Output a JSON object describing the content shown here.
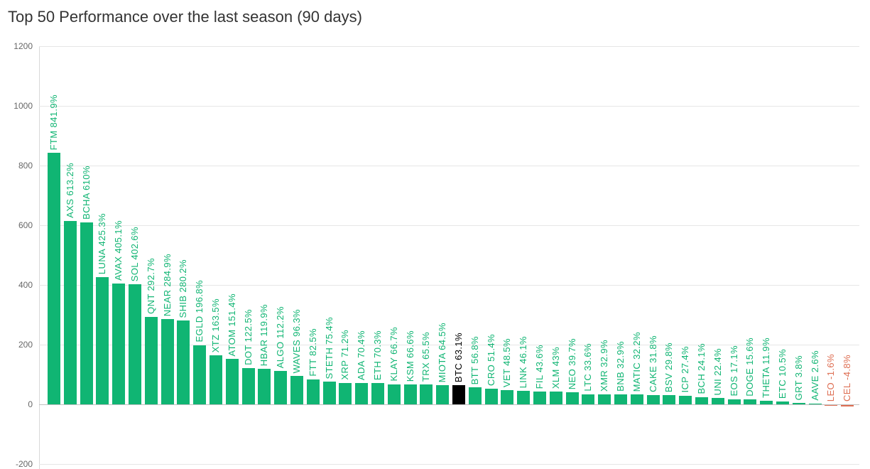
{
  "chart_data": {
    "type": "bar",
    "title": "Top 50 Performance over the last season (90 days)",
    "xlabel": "",
    "ylabel": "",
    "unit": "%",
    "ylim": [
      -200,
      1200
    ],
    "yticks": [
      1200,
      1000,
      800,
      600,
      400,
      200,
      0,
      -200
    ],
    "grid": true,
    "legend": false,
    "highlight_symbol": "BTC",
    "colors": {
      "positive": "#10b573",
      "negative": "#de6e52",
      "highlight": "#000000",
      "grid": "#e6e6e6",
      "zero_line": "#c0c0c0",
      "axis": "#d9d9d9",
      "title": "#333333",
      "tick": "#666666"
    },
    "series": [
      {
        "symbol": "FTM",
        "value": 841.9,
        "label": "FTM 841.9%"
      },
      {
        "symbol": "AXS",
        "value": 613.2,
        "label": "AXS 613.2%"
      },
      {
        "symbol": "BCHA",
        "value": 610,
        "label": "BCHA 610%"
      },
      {
        "symbol": "LUNA",
        "value": 425.3,
        "label": "LUNA 425.3%"
      },
      {
        "symbol": "AVAX",
        "value": 405.1,
        "label": "AVAX 405.1%"
      },
      {
        "symbol": "SOL",
        "value": 402.6,
        "label": "SOL 402.6%"
      },
      {
        "symbol": "QNT",
        "value": 292.7,
        "label": "QNT 292.7%"
      },
      {
        "symbol": "NEAR",
        "value": 284.9,
        "label": "NEAR 284.9%"
      },
      {
        "symbol": "SHIB",
        "value": 280.2,
        "label": "SHIB 280.2%"
      },
      {
        "symbol": "EGLD",
        "value": 196.8,
        "label": "EGLD 196.8%"
      },
      {
        "symbol": "XTZ",
        "value": 163.5,
        "label": "XTZ 163.5%"
      },
      {
        "symbol": "ATOM",
        "value": 151.4,
        "label": "ATOM 151.4%"
      },
      {
        "symbol": "DOT",
        "value": 122.5,
        "label": "DOT 122.5%"
      },
      {
        "symbol": "HBAR",
        "value": 119.9,
        "label": "HBAR 119.9%"
      },
      {
        "symbol": "ALGO",
        "value": 112.2,
        "label": "ALGO 112.2%"
      },
      {
        "symbol": "WAVES",
        "value": 96.3,
        "label": "WAVES 96.3%"
      },
      {
        "symbol": "FTT",
        "value": 82.5,
        "label": "FTT 82.5%"
      },
      {
        "symbol": "STETH",
        "value": 75.4,
        "label": "STETH 75.4%"
      },
      {
        "symbol": "XRP",
        "value": 71.2,
        "label": "XRP 71.2%"
      },
      {
        "symbol": "ADA",
        "value": 70.4,
        "label": "ADA 70.4%"
      },
      {
        "symbol": "ETH",
        "value": 70.3,
        "label": "ETH 70.3%"
      },
      {
        "symbol": "KLAY",
        "value": 66.7,
        "label": "KLAY 66.7%"
      },
      {
        "symbol": "KSM",
        "value": 66.6,
        "label": "KSM 66.6%"
      },
      {
        "symbol": "TRX",
        "value": 65.5,
        "label": "TRX 65.5%"
      },
      {
        "symbol": "MIOTA",
        "value": 64.5,
        "label": "MIOTA 64.5%"
      },
      {
        "symbol": "BTC",
        "value": 63.1,
        "label": "BTC 63.1%"
      },
      {
        "symbol": "BTT",
        "value": 56.8,
        "label": "BTT 56.8%"
      },
      {
        "symbol": "CRO",
        "value": 51.4,
        "label": "CRO 51.4%"
      },
      {
        "symbol": "VET",
        "value": 48.5,
        "label": "VET 48.5%"
      },
      {
        "symbol": "LINK",
        "value": 46.1,
        "label": "LINK 46.1%"
      },
      {
        "symbol": "FIL",
        "value": 43.6,
        "label": "FIL 43.6%"
      },
      {
        "symbol": "XLM",
        "value": 43,
        "label": "XLM 43%"
      },
      {
        "symbol": "NEO",
        "value": 39.7,
        "label": "NEO 39.7%"
      },
      {
        "symbol": "LTC",
        "value": 33.6,
        "label": "LTC 33.6%"
      },
      {
        "symbol": "XMR",
        "value": 32.9,
        "label": "XMR 32.9%"
      },
      {
        "symbol": "BNB",
        "value": 32.9,
        "label": "BNB 32.9%"
      },
      {
        "symbol": "MATIC",
        "value": 32.2,
        "label": "MATIC 32.2%"
      },
      {
        "symbol": "CAKE",
        "value": 31.8,
        "label": "CAKE 31.8%"
      },
      {
        "symbol": "BSV",
        "value": 29.8,
        "label": "BSV 29.8%"
      },
      {
        "symbol": "ICP",
        "value": 27.4,
        "label": "ICP 27.4%"
      },
      {
        "symbol": "BCH",
        "value": 24.1,
        "label": "BCH 24.1%"
      },
      {
        "symbol": "UNI",
        "value": 22.4,
        "label": "UNI 22.4%"
      },
      {
        "symbol": "EOS",
        "value": 17.1,
        "label": "EOS 17.1%"
      },
      {
        "symbol": "DOGE",
        "value": 15.6,
        "label": "DOGE 15.6%"
      },
      {
        "symbol": "THETA",
        "value": 11.9,
        "label": "THETA 11.9%"
      },
      {
        "symbol": "ETC",
        "value": 10.5,
        "label": "ETC 10.5%"
      },
      {
        "symbol": "GRT",
        "value": 3.8,
        "label": "GRT 3.8%"
      },
      {
        "symbol": "AAVE",
        "value": 2.6,
        "label": "AAVE 2.6%"
      },
      {
        "symbol": "LEO",
        "value": -1.6,
        "label": "LEO -1.6%"
      },
      {
        "symbol": "CEL",
        "value": -4.8,
        "label": "CEL -4.8%"
      }
    ]
  }
}
